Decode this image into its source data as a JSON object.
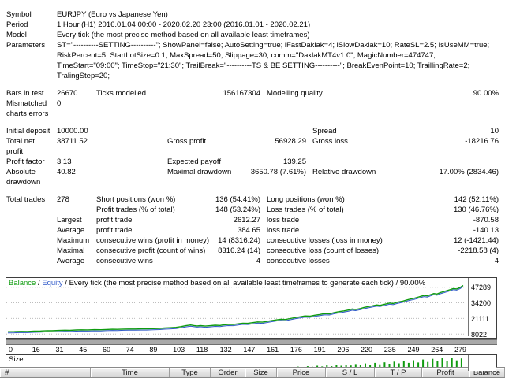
{
  "report": {
    "rows": [
      {
        "cells": [
          {
            "t": "Symbol",
            "c": "lbl"
          },
          {
            "t": "EURJPY (Euro vs Japanese Yen)",
            "c": "wide"
          }
        ]
      },
      {
        "cells": [
          {
            "t": "Period",
            "c": "lbl"
          },
          {
            "t": "1 Hour (H1) 2016.01.04 00:00 - 2020.02.20 23:00 (2016.01.01 - 2020.02.21)",
            "c": "wide"
          }
        ]
      },
      {
        "cells": [
          {
            "t": "Model",
            "c": "lbl"
          },
          {
            "t": "Every tick (the most precise method based on all available least timeframes)",
            "c": "wide"
          }
        ]
      },
      {
        "cells": [
          {
            "t": "Parameters",
            "c": "lbl"
          },
          {
            "t": "ST=\"----------SETTING----------\"; ShowPanel=false; AutoSetting=true; iFastDaklak=4; iSlowDaklak=10; RateSL=2.5; IsUseMM=true; RiskPercent=5; StartLotSize=0.1; MaxSpread=50; Slippage=30; comm=\"DaklakMT4v1.0\"; MagicNumber=474747; TimeStart=\"09:00\"; TimeStop=\"21:30\"; TrailBreak=\"----------TS & BE SETTING----------\"; BreakEvenPoint=10; TraillingRate=2; TralingStep=20;",
            "c": "wide"
          }
        ]
      },
      {
        "gap": true,
        "cells": [
          {
            "t": "Bars in test",
            "c": "lbl"
          },
          {
            "t": "26670",
            "c": "v1"
          },
          {
            "t": "Ticks modelled",
            "c": "ml"
          },
          {
            "t": "156167304",
            "c": "v2"
          },
          {
            "t": "Modelling quality",
            "c": "ml2"
          },
          {
            "t": "90.00%",
            "c": "v3"
          }
        ]
      },
      {
        "cells": [
          {
            "t": "Mismatched charts errors",
            "c": "lbl"
          },
          {
            "t": "0",
            "c": "v1"
          }
        ]
      },
      {
        "gap": true,
        "cells": [
          {
            "t": "Initial deposit",
            "c": "lbl"
          },
          {
            "t": "10000.00",
            "c": "v1b"
          },
          {
            "t": "",
            "c": "mlb"
          },
          {
            "t": "",
            "c": "v2b"
          },
          {
            "t": "Spread",
            "c": "ml2b"
          },
          {
            "t": "10",
            "c": "v3"
          }
        ]
      },
      {
        "cells": [
          {
            "t": "Total net profit",
            "c": "lbl"
          },
          {
            "t": "38711.52",
            "c": "v1b"
          },
          {
            "t": "Gross profit",
            "c": "mlb"
          },
          {
            "t": "56928.29",
            "c": "v2b"
          },
          {
            "t": "Gross loss",
            "c": "ml2b"
          },
          {
            "t": "-18216.76",
            "c": "v3"
          }
        ]
      },
      {
        "cells": [
          {
            "t": "Profit factor",
            "c": "lbl"
          },
          {
            "t": "3.13",
            "c": "v1b"
          },
          {
            "t": "Expected payoff",
            "c": "mlb"
          },
          {
            "t": "139.25",
            "c": "v2b"
          }
        ]
      },
      {
        "cells": [
          {
            "t": "Absolute drawdown",
            "c": "lbl"
          },
          {
            "t": "40.82",
            "c": "v1b"
          },
          {
            "t": "Maximal drawdown",
            "c": "mlb"
          },
          {
            "t": "3650.78 (7.61%)",
            "c": "v2b"
          },
          {
            "t": "Relative drawdown",
            "c": "ml2b"
          },
          {
            "t": "17.00% (2834.46)",
            "c": "v3"
          }
        ]
      },
      {
        "gap": true,
        "cells": [
          {
            "t": "Total trades",
            "c": "lbl"
          },
          {
            "t": "278",
            "c": "v1"
          },
          {
            "t": "Short positions (won %)",
            "c": "ml"
          },
          {
            "t": "136 (54.41%)",
            "c": "v2"
          },
          {
            "t": "Long positions (won %)",
            "c": "ml2"
          },
          {
            "t": "142 (52.11%)",
            "c": "v3"
          }
        ]
      },
      {
        "cells": [
          {
            "t": "",
            "c": "lbl"
          },
          {
            "t": "",
            "c": "v1"
          },
          {
            "t": "Profit trades (% of total)",
            "c": "ml"
          },
          {
            "t": "148 (53.24%)",
            "c": "v2"
          },
          {
            "t": "Loss trades (% of total)",
            "c": "ml2"
          },
          {
            "t": "130 (46.76%)",
            "c": "v3"
          }
        ]
      },
      {
        "cells": [
          {
            "t": "",
            "c": "lbl"
          },
          {
            "t": "Largest",
            "c": "v1"
          },
          {
            "t": "profit trade",
            "c": "ml"
          },
          {
            "t": "2612.27",
            "c": "v2"
          },
          {
            "t": "loss trade",
            "c": "ml2"
          },
          {
            "t": "-870.58",
            "c": "v3"
          }
        ]
      },
      {
        "cells": [
          {
            "t": "",
            "c": "lbl"
          },
          {
            "t": "Average",
            "c": "v1"
          },
          {
            "t": "profit trade",
            "c": "ml"
          },
          {
            "t": "384.65",
            "c": "v2"
          },
          {
            "t": "loss trade",
            "c": "ml2"
          },
          {
            "t": "-140.13",
            "c": "v3"
          }
        ]
      },
      {
        "cells": [
          {
            "t": "",
            "c": "lbl"
          },
          {
            "t": "Maximum",
            "c": "v1"
          },
          {
            "t": "consecutive wins (profit in money)",
            "c": "ml"
          },
          {
            "t": "14 (8316.24)",
            "c": "v2"
          },
          {
            "t": "consecutive losses (loss in money)",
            "c": "ml2"
          },
          {
            "t": "12 (-1421.44)",
            "c": "v3"
          }
        ]
      },
      {
        "cells": [
          {
            "t": "",
            "c": "lbl"
          },
          {
            "t": "Maximal",
            "c": "v1"
          },
          {
            "t": "consecutive profit (count of wins)",
            "c": "ml"
          },
          {
            "t": "8316.24 (14)",
            "c": "v2"
          },
          {
            "t": "consecutive loss (count of losses)",
            "c": "ml2"
          },
          {
            "t": "-2218.58 (4)",
            "c": "v3"
          }
        ]
      },
      {
        "cells": [
          {
            "t": "",
            "c": "lbl"
          },
          {
            "t": "Average",
            "c": "v1"
          },
          {
            "t": "consecutive wins",
            "c": "ml"
          },
          {
            "t": "4",
            "c": "v2"
          },
          {
            "t": "consecutive losses",
            "c": "ml2"
          },
          {
            "t": "4",
            "c": "v3"
          }
        ]
      }
    ]
  },
  "chart_data": [
    {
      "type": "line",
      "legend": [
        {
          "label": "Balance",
          "color": "#0f9b0f"
        },
        {
          "label": "Equity",
          "color": "#2e58c8"
        }
      ],
      "title_suffix": "Every tick (the most precise method based on all available least timeframes to generate each tick) / 90.00%",
      "xlim": [
        0,
        279
      ],
      "ylim": [
        6200,
        55000
      ],
      "yticks": [
        47289,
        34200,
        21111,
        8022
      ],
      "xticks": [
        0,
        16,
        31,
        45,
        60,
        74,
        89,
        103,
        118,
        132,
        147,
        161,
        176,
        191,
        206,
        220,
        235,
        249,
        264,
        279
      ],
      "series": [
        {
          "name": "Balance",
          "color": "#0f9b0f",
          "points": [
            [
              0,
              10000
            ],
            [
              4,
              10120
            ],
            [
              8,
              10280
            ],
            [
              12,
              10220
            ],
            [
              16,
              10480
            ],
            [
              20,
              10650
            ],
            [
              24,
              10860
            ],
            [
              27,
              10800
            ],
            [
              31,
              11080
            ],
            [
              35,
              11260
            ],
            [
              38,
              11200
            ],
            [
              42,
              11460
            ],
            [
              45,
              11620
            ],
            [
              49,
              11560
            ],
            [
              53,
              11760
            ],
            [
              57,
              11700
            ],
            [
              60,
              11880
            ],
            [
              64,
              12040
            ],
            [
              67,
              11980
            ],
            [
              71,
              12180
            ],
            [
              74,
              12300
            ],
            [
              78,
              12240
            ],
            [
              82,
              12430
            ],
            [
              85,
              12380
            ],
            [
              89,
              12580
            ],
            [
              93,
              12800
            ],
            [
              96,
              13120
            ],
            [
              100,
              13420
            ],
            [
              103,
              13650
            ],
            [
              106,
              14250
            ],
            [
              109,
              15050
            ],
            [
              112,
              15600
            ],
            [
              114,
              15200
            ],
            [
              116,
              14820
            ],
            [
              118,
              15120
            ],
            [
              121,
              14720
            ],
            [
              124,
              15020
            ],
            [
              127,
              15420
            ],
            [
              130,
              15220
            ],
            [
              132,
              15720
            ],
            [
              135,
              16120
            ],
            [
              138,
              16020
            ],
            [
              141,
              16620
            ],
            [
              144,
              17120
            ],
            [
              147,
              17020
            ],
            [
              150,
              17620
            ],
            [
              153,
              18220
            ],
            [
              156,
              18020
            ],
            [
              159,
              18720
            ],
            [
              161,
              19220
            ],
            [
              164,
              19820
            ],
            [
              167,
              20420
            ],
            [
              170,
              20220
            ],
            [
              173,
              21020
            ],
            [
              176,
              21820
            ],
            [
              179,
              22520
            ],
            [
              182,
              23220
            ],
            [
              185,
              23020
            ],
            [
              188,
              23820
            ],
            [
              191,
              24420
            ],
            [
              194,
              25220
            ],
            [
              197,
              25020
            ],
            [
              200,
              26020
            ],
            [
              203,
              26820
            ],
            [
              206,
              27420
            ],
            [
              209,
              28220
            ],
            [
              211,
              29020
            ],
            [
              213,
              28620
            ],
            [
              216,
              29420
            ],
            [
              218,
              30220
            ],
            [
              220,
              30820
            ],
            [
              223,
              31620
            ],
            [
              226,
              32420
            ],
            [
              228,
              32020
            ],
            [
              231,
              33020
            ],
            [
              234,
              34020
            ],
            [
              236,
              33620
            ],
            [
              239,
              34820
            ],
            [
              242,
              35620
            ],
            [
              244,
              36420
            ],
            [
              246,
              37220
            ],
            [
              249,
              38020
            ],
            [
              251,
              38820
            ],
            [
              253,
              39620
            ],
            [
              255,
              40420
            ],
            [
              257,
              40020
            ],
            [
              259,
              41020
            ],
            [
              261,
              42020
            ],
            [
              263,
              41620
            ],
            [
              265,
              42820
            ],
            [
              267,
              43620
            ],
            [
              269,
              44420
            ],
            [
              271,
              45220
            ],
            [
              273,
              46220
            ],
            [
              275,
              45820
            ],
            [
              277,
              47020
            ],
            [
              279,
              48711
            ]
          ]
        },
        {
          "name": "Equity",
          "color": "#2e58c8"
        }
      ]
    },
    {
      "type": "bar",
      "label": "Size",
      "color": "#0f9b0f",
      "ylim": [
        0,
        10
      ],
      "values": [
        0.3,
        0.3,
        0.35,
        0.3,
        0.4,
        0.35,
        0.4,
        0.4,
        0.45,
        0.4,
        0.5,
        0.45,
        0.5,
        0.5,
        0.55,
        0.5,
        0.6,
        0.55,
        0.6,
        0.6,
        0.6,
        0.7,
        0.65,
        0.7,
        0.75,
        0.7,
        0.8,
        0.75,
        0.8,
        0.85,
        0.8,
        0.9,
        1.0,
        0.9,
        1.3,
        1.1,
        1.5,
        1.2,
        1.4,
        1.3,
        1.2,
        1.4,
        1.3,
        1.5,
        1.4,
        1.6,
        1.6,
        1.8,
        1.7,
        2.0,
        1.8,
        2.2,
        1.9,
        2.4,
        2.1,
        2.6,
        2.3,
        2.8,
        2.5,
        2.6,
        3.0,
        2.7,
        3.3,
        2.9,
        3.6,
        3.1,
        3.9,
        3.3,
        4.2,
        3.6,
        4.4,
        3.8,
        4.8,
        4.0,
        5.2,
        4.3,
        5.6,
        4.6,
        6.0,
        5.0,
        6.5,
        5.3,
        7.0,
        5.6,
        7.5,
        5.9,
        8.0,
        6.3,
        8.5,
        6.7,
        9.0,
        7.0,
        9.4,
        7.4,
        8.8
      ]
    }
  ],
  "results_table": {
    "columns": [
      "#",
      "Time",
      "Type",
      "Order",
      "Size",
      "Price",
      "S / L",
      "T / P",
      "Profit",
      "Balance"
    ]
  }
}
